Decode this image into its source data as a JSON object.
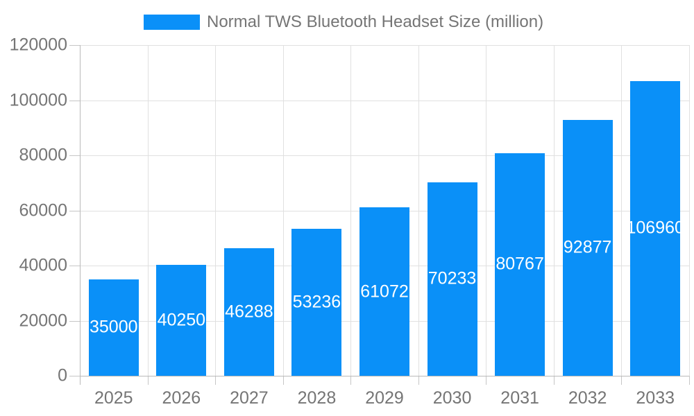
{
  "chart_data": {
    "type": "bar",
    "title": "Normal TWS Bluetooth Headset Size (million)",
    "categories": [
      "2025",
      "2026",
      "2027",
      "2028",
      "2029",
      "2030",
      "2031",
      "2032",
      "2033"
    ],
    "series": [
      {
        "name": "Normal TWS Bluetooth Headset Size (million)",
        "values": [
          35000,
          40250,
          46288,
          53236,
          61072,
          70233,
          80767,
          92877,
          106960
        ]
      }
    ],
    "data_labels": [
      "35000",
      "40250",
      "46288",
      "53236",
      "61072",
      "70233",
      "80767",
      "92877",
      "106960"
    ],
    "xlabel": "",
    "ylabel": "",
    "ylim": [
      0,
      120000
    ],
    "yticks": [
      0,
      20000,
      40000,
      60000,
      80000,
      100000,
      120000
    ],
    "ytick_labels": [
      "0",
      "20000",
      "40000",
      "60000",
      "80000",
      "100000",
      "120000"
    ],
    "grid": true,
    "legend_position": "top",
    "colors": {
      "bar": "#0a90f8",
      "grid": "#e0e0e0",
      "axis": "#b9b9b9",
      "tick": "#c6c6c6",
      "axis_text": "#757575",
      "value_label": "#ffffff",
      "background": "#ffffff"
    }
  }
}
